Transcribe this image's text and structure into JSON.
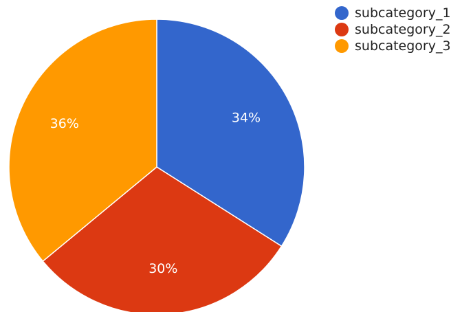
{
  "chart_data": {
    "type": "pie",
    "title": "",
    "legend_position": "top-right",
    "slices": [
      {
        "name": "subcategory_1",
        "value": 34,
        "label": "34%",
        "color": "#3366cc"
      },
      {
        "name": "subcategory_2",
        "value": 30,
        "label": "30%",
        "color": "#dc3912"
      },
      {
        "name": "subcategory_3",
        "value": 36,
        "label": "36%",
        "color": "#ff9900"
      }
    ]
  }
}
